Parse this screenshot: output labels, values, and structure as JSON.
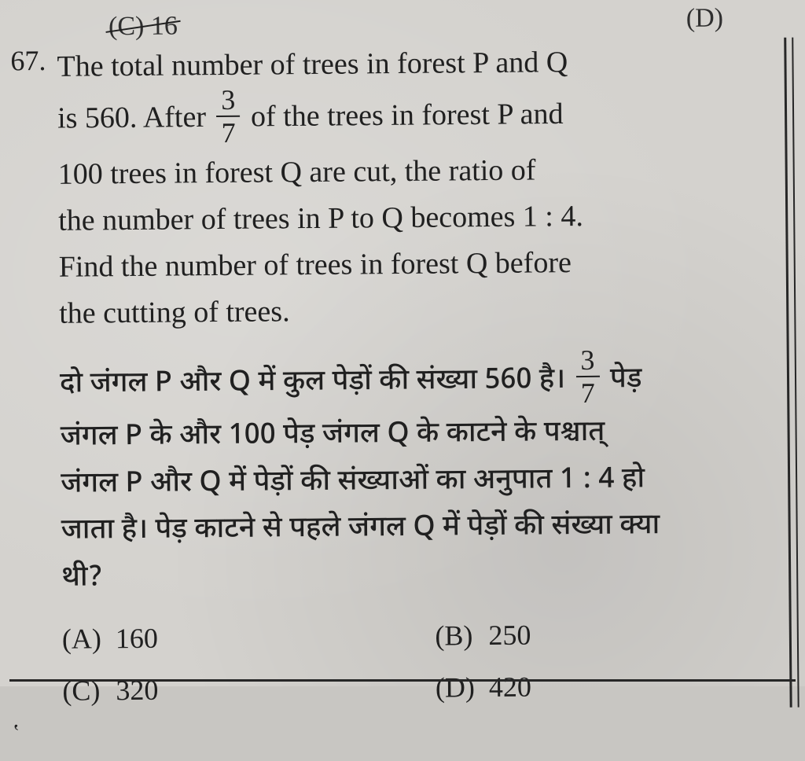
{
  "background_color": "#d4d2ce",
  "text_color": "#1a1a1a",
  "rule_color": "#222222",
  "previous_question": {
    "option_c": "(C) 16",
    "option_d_partial": "(D)",
    "strike_on_c": true,
    "fontsize": 34
  },
  "question": {
    "number": "67.",
    "english": {
      "line1_prefix": "The total number of trees in forest P and Q",
      "line2_prefix": "is 560. After",
      "fraction_num": "3",
      "fraction_den": "7",
      "line2_suffix": "of the trees in forest P and",
      "line3": "100 trees in forest Q are cut, the ratio of",
      "line4": "the number of trees in P to Q becomes 1 : 4.",
      "line5": "Find the number of trees in forest Q before",
      "line6": "the cutting of trees.",
      "fontsize": 38
    },
    "hindi": {
      "line1_prefix": "दो जंगल P और Q में कुल पेड़ों की संख्या 560 है।",
      "fraction_num": "3",
      "fraction_den": "7",
      "line1_suffix": "पेड़",
      "line2": "जंगल P के और 100 पेड़ जंगल Q के काटने के पश्चात्",
      "line3": "जंगल P और Q में पेड़ों की संख्याओं का अनुपात 1 : 4 हो",
      "line4": "जाता है। पेड़ काटने से पहले जंगल Q में पेड़ों की संख्या क्या",
      "line5": "थी?",
      "fontsize": 36
    },
    "options": {
      "a": {
        "label": "(A)",
        "value": "160"
      },
      "b": {
        "label": "(B)",
        "value": "250"
      },
      "c": {
        "label": "(C)",
        "value": "320"
      },
      "d": {
        "label": "(D)",
        "value": "420"
      },
      "fontsize": 36
    },
    "extra_marks": {
      "left_tick": "‛"
    }
  }
}
